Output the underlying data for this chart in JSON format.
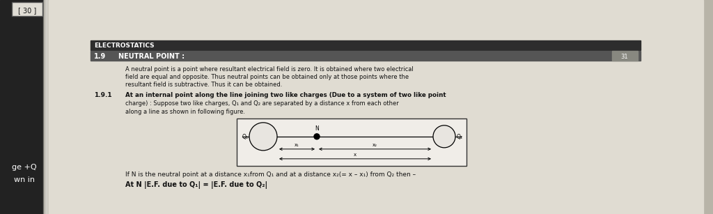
{
  "bg_color": "#b8b4a8",
  "page_bg": "#e8e4dc",
  "left_strip_color": "#1a1a1a",
  "header_bg": "#2d2d2d",
  "header_text": "ELECTROSTATICS",
  "header_text_color": "#ffffff",
  "section_num": "1.9",
  "section_title": "NEUTRAL POINT :",
  "page_num_box_text": "31",
  "body_text_1a": "A neutral point is a point where resultant electrical field is zero. It is obtained where two electrical",
  "body_text_1b": "field are equal and opposite. Thus neutral points can be obtained only at those points where the",
  "body_text_1c": "resultant field is subtractive. Thus it can be obtained.",
  "sub_section_num": "1.9.1",
  "sub_title_b1": "At an internal point along the line joining two like charges (Due to a system of two like point",
  "sub_title_b2": "charge) : Suppose two like charges, Q₁ and Q₂ are separated by a distance x from each other",
  "sub_title_b3": "along a line as shown in following figure.",
  "footer_text_1": "If N is the neutral point at a distance x₁from Q₁ and at a distance x₂(= x – x₁) from Q₂ then –",
  "footer_text_2": "At N |E.F. due to Q₁| = |E.F. due to Q₂|",
  "left_margin_text1": "ge +Q",
  "left_margin_text2": "wn in",
  "corner_text": "[ 30 ]",
  "text_color": "#111111",
  "text_color_light": "#333333"
}
